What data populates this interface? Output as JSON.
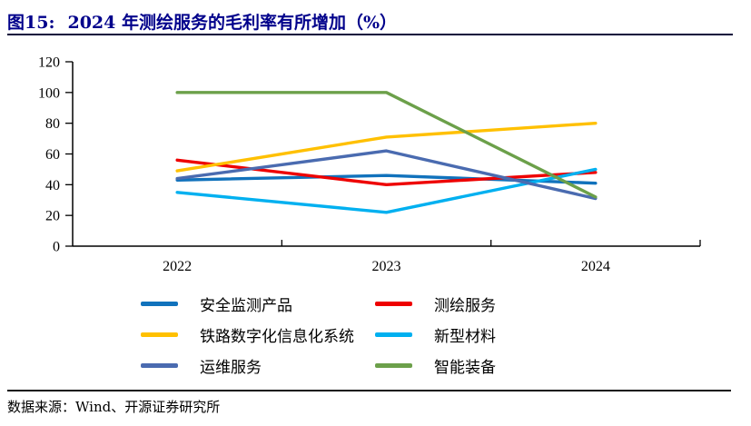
{
  "figure": {
    "label": "图15:",
    "title": "2024 年测绘服务的毛利率有所增加（%）"
  },
  "source_note": "数据来源：Wind、开源证券研究所",
  "accent_colors": {
    "title_navy": "#00008B",
    "axis_black": "#000000"
  },
  "chart_data": {
    "type": "line",
    "title": "图15: 2024 年测绘服务的毛利率有所增加（%）",
    "categories": [
      "2022",
      "2023",
      "2024"
    ],
    "series": [
      {
        "name": "安全监测产品",
        "color": "#1172BC",
        "values": [
          43,
          46,
          41
        ]
      },
      {
        "name": "测绘服务",
        "color": "#EE0000",
        "values": [
          56,
          40,
          48
        ]
      },
      {
        "name": "铁路数字化信息化系统",
        "color": "#FFC000",
        "values": [
          49,
          71,
          80
        ]
      },
      {
        "name": "新型材料",
        "color": "#00B0F0",
        "values": [
          35,
          22,
          50
        ]
      },
      {
        "name": "运维服务",
        "color": "#4A6BB0",
        "values": [
          44,
          62,
          31
        ]
      },
      {
        "name": "智能装备",
        "color": "#6CA04A",
        "values": [
          100,
          100,
          32
        ]
      }
    ],
    "xlabel": "",
    "ylabel": "",
    "ylim": [
      0,
      120
    ],
    "yticks": [
      0,
      20,
      40,
      60,
      80,
      100,
      120
    ],
    "grid": false,
    "legend_position": "bottom",
    "unit": "%"
  }
}
